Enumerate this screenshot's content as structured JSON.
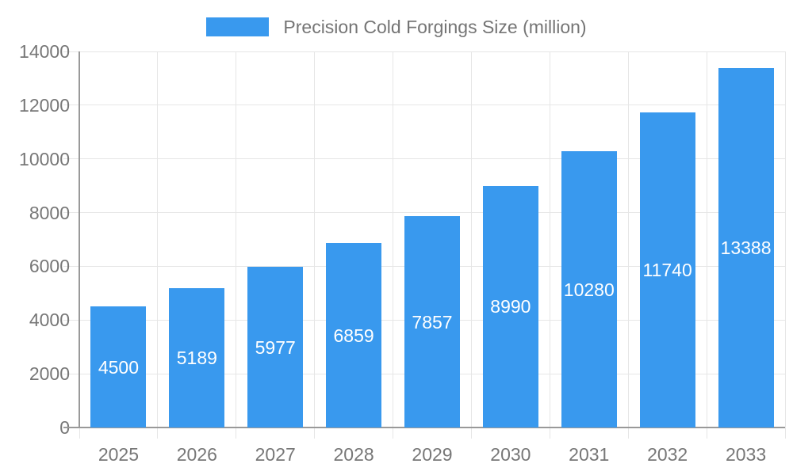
{
  "chart_data": {
    "type": "bar",
    "title": "Precision Cold Forgings Size (million)",
    "legend": {
      "label": "Precision Cold Forgings Size (million)",
      "position": "top-center"
    },
    "categories": [
      "2025",
      "2026",
      "2027",
      "2028",
      "2029",
      "2030",
      "2031",
      "2032",
      "2033"
    ],
    "series": [
      {
        "name": "Precision Cold Forgings Size (million)",
        "values": [
          4500,
          5189,
          5977,
          6859,
          7857,
          8990,
          10280,
          11740,
          13388
        ]
      }
    ],
    "value_labels_shown": true,
    "xlabel": "",
    "ylabel": "",
    "ylim": [
      0,
      14000
    ],
    "ytick_step": 2000,
    "yticks": [
      "0",
      "2000",
      "4000",
      "6000",
      "8000",
      "10000",
      "12000",
      "14000"
    ],
    "grid": true,
    "colors": {
      "bar": "#3999ee",
      "value_label": "#ffffff",
      "axis_text": "#777777",
      "legend_text": "#757575",
      "gridline": "#e6e6e6",
      "axis_line": "#999999",
      "background": "#ffffff"
    }
  }
}
